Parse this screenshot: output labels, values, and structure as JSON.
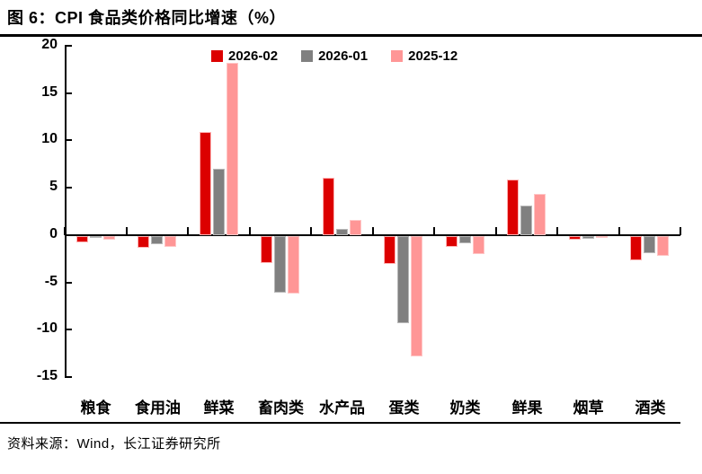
{
  "figure": {
    "title": "图 6：CPI 食品类价格同比增速（%）",
    "source": "资料来源：Wind，长江证券研究所"
  },
  "chart_data": {
    "type": "bar",
    "title": "CPI 食品类价格同比增速（%）",
    "xlabel": "",
    "ylabel": "",
    "ylim": [
      -15,
      20
    ],
    "ytick_step": 5,
    "yticks": [
      20,
      15,
      10,
      5,
      0,
      -5,
      -10,
      -15
    ],
    "grid": false,
    "legend_position": "top-center",
    "categories": [
      "粮食",
      "食用油",
      "鲜菜",
      "畜肉类",
      "水产品",
      "蛋类",
      "奶类",
      "鲜果",
      "烟草",
      "酒类"
    ],
    "series": [
      {
        "name": "2026-02",
        "color": "#dc0000",
        "border_color": "#ffb3b3",
        "values": [
          -0.7,
          -1.2,
          10.9,
          -2.8,
          6.1,
          -2.9,
          -1.1,
          5.9,
          -0.4,
          -2.6
        ]
      },
      {
        "name": "2026-01",
        "color": "#808080",
        "border_color": "#b8b8b8",
        "values": [
          -0.2,
          -0.9,
          7.0,
          -6.0,
          0.7,
          -9.2,
          -0.8,
          3.1,
          -0.3,
          -1.8
        ]
      },
      {
        "name": "2025-12",
        "color": "#ff9696",
        "border_color": "#ffc6c6",
        "values": [
          -0.4,
          -1.1,
          18.2,
          -6.1,
          1.6,
          -12.7,
          -1.9,
          4.4,
          -0.2,
          -2.1
        ]
      }
    ],
    "axis_color": "#000000"
  }
}
